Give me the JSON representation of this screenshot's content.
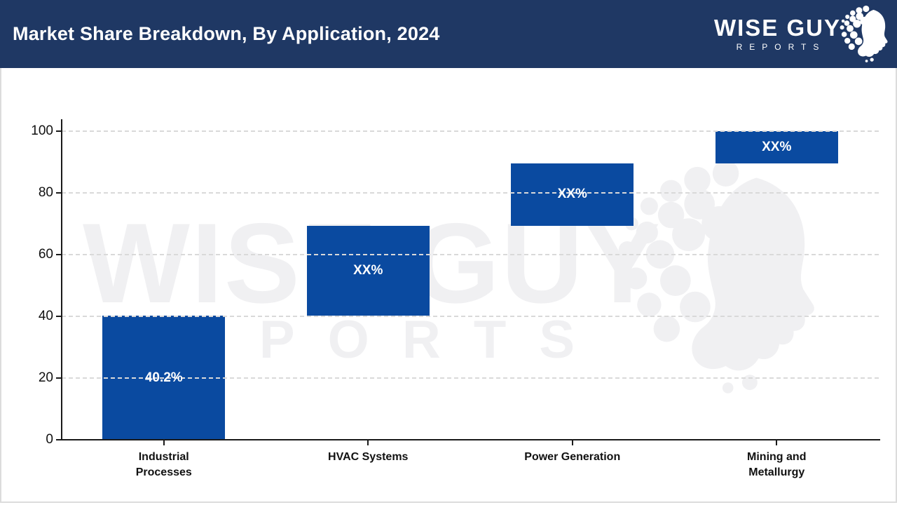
{
  "header": {
    "title": "Market Share Breakdown, By Application, 2024",
    "logo": {
      "line1": "WISE GUY",
      "line2": "REPORTS"
    }
  },
  "watermark": {
    "line1": "WISE GUY",
    "line2": "REPORTS"
  },
  "chart_data": {
    "type": "bar",
    "variant": "waterfall",
    "title": "Market Share Breakdown, By Application, 2024",
    "categories": [
      "Industrial\nProcesses",
      "HVAC Systems",
      "Power Generation",
      "Mining and\nMetallurgy"
    ],
    "segments": [
      {
        "category": "Industrial Processes",
        "start": 0,
        "end": 40.2,
        "label": "40.2%"
      },
      {
        "category": "HVAC Systems",
        "start": 40.2,
        "end": 69.4,
        "label": "XX%"
      },
      {
        "category": "Power Generation",
        "start": 69.4,
        "end": 89.5,
        "label": "XX%"
      },
      {
        "category": "Mining and Metallurgy",
        "start": 89.5,
        "end": 100,
        "label": "XX%"
      }
    ],
    "yticks": [
      0,
      20,
      40,
      60,
      80,
      100
    ],
    "ylim": [
      0,
      105
    ],
    "xlabel": "",
    "ylabel": "",
    "grid": "horizontal-dashed",
    "legend": "none"
  },
  "colors": {
    "header_bg": "#1f3864",
    "title": "#ffffff",
    "bar": "#0a4aa0",
    "bar_label": "#ffffff",
    "grid": "#d9d9d9",
    "axis": "#1a1a1a",
    "text": "#111111",
    "watermark": "#f0f0f2",
    "border": "#dcdcdc"
  }
}
